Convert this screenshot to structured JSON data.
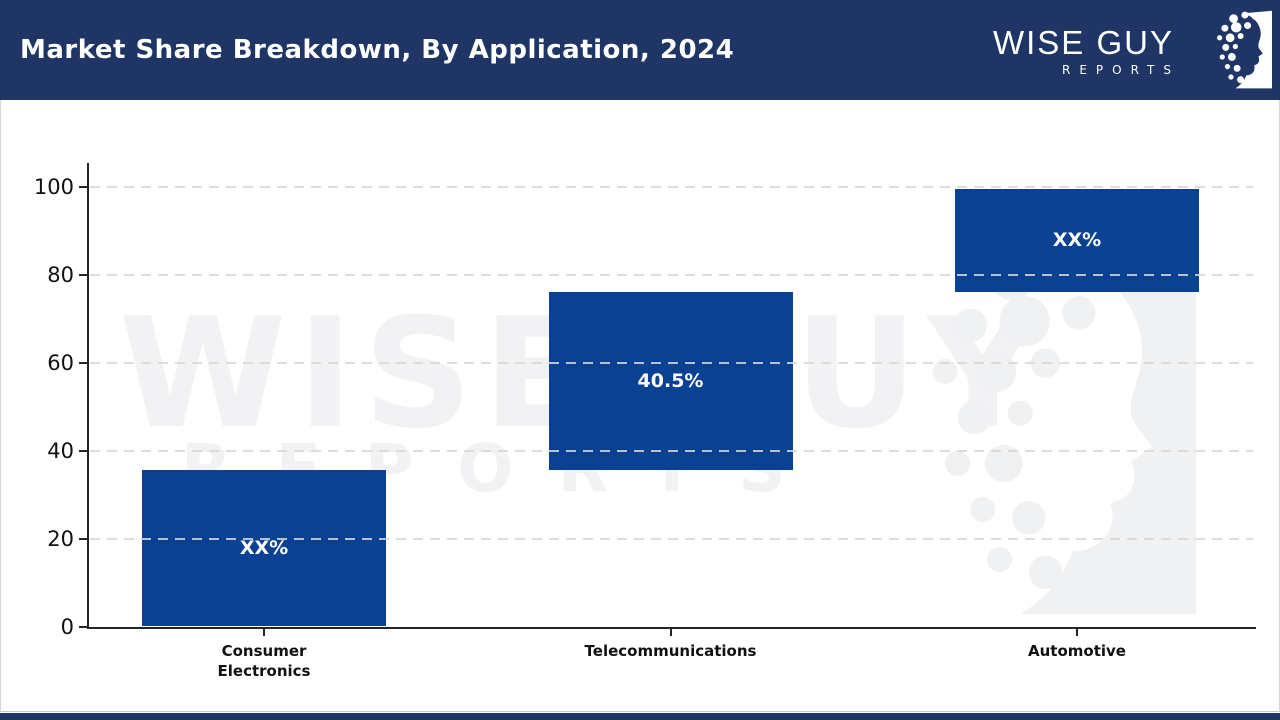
{
  "header": {
    "title": "Market Share Breakdown, By Application, 2024",
    "logo": {
      "wordmark": "WISE GUY",
      "subtitle": "REPORTS"
    }
  },
  "watermark": {
    "wordmark": "WISE GUY",
    "subtitle": "REPORTS"
  },
  "chart_data": {
    "type": "bar",
    "subtype": "waterfall-floating-bars",
    "title": "Market Share Breakdown, By Application, 2024",
    "categories": [
      "Consumer\nElectronics",
      "Telecommunications",
      "Automotive"
    ],
    "bars": [
      {
        "category": "Consumer\nElectronics",
        "start": 0,
        "end": 35.5,
        "label": "XX%"
      },
      {
        "category": "Telecommunications",
        "start": 35.5,
        "end": 76,
        "label": "40.5%"
      },
      {
        "category": "Automotive",
        "start": 76,
        "end": 99.5,
        "label": "XX%"
      }
    ],
    "yticks": [
      0,
      20,
      40,
      60,
      80,
      100
    ],
    "ylim": [
      0,
      105
    ],
    "xlabel": "",
    "ylabel": "",
    "grid": "horizontal-dashed",
    "legend": "none",
    "bar_color": "#0a4193",
    "bar_label_color": "#ffffff"
  },
  "colors": {
    "header_bg": "#1f3566",
    "footer_bg": "#1f3566",
    "bar": "#0a4193",
    "grid": "#d9d9d9",
    "axis": "#262626",
    "watermark": "#f2f2f4"
  }
}
